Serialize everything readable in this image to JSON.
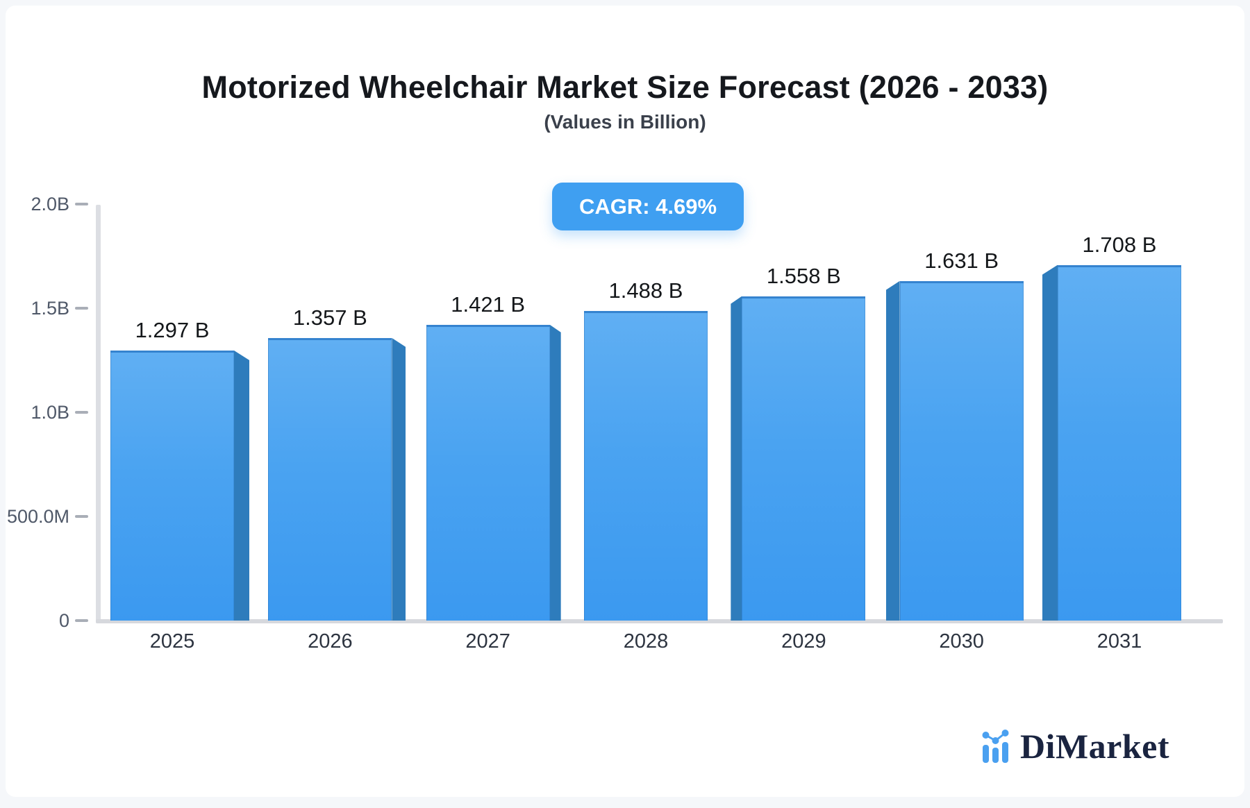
{
  "header": {
    "title": "Motorized Wheelchair Market Size Forecast (2026 - 2033)",
    "subtitle": "(Values in Billion)",
    "badge_label": "CAGR: 4.69%"
  },
  "chart_data": {
    "type": "bar",
    "title": "Motorized Wheelchair Market Size Forecast (2026 - 2033)",
    "subtitle": "(Values in Billion)",
    "cagr_percent": "4.69%",
    "categories": [
      "2025",
      "2026",
      "2027",
      "2028",
      "2029",
      "2030",
      "2031"
    ],
    "values": [
      1.297,
      1.357,
      1.421,
      1.488,
      1.558,
      1.631,
      1.708
    ],
    "value_labels": [
      "1.297 B",
      "1.357 B",
      "1.421 B",
      "1.488 B",
      "1.558 B",
      "1.631 B",
      "1.708 B"
    ],
    "value_unit": "Billion",
    "ylim": [
      0,
      2.0
    ],
    "ytick_values": [
      0,
      0.5,
      1.0,
      1.5,
      2.0
    ],
    "ytick_labels": [
      "0",
      "500.0M",
      "1.0B",
      "1.5B",
      "2.0B"
    ],
    "grid": false,
    "legend": "none",
    "colors": {
      "bar_top": "#60aff3",
      "bar_bottom": "#3b99f0",
      "bar_side": "#2e7cbc",
      "badge_background": "#3f9ff1",
      "axis_line": "#d6d8dd"
    }
  },
  "logo": {
    "text": "DiMarket",
    "icon": "bar-chart-logo-icon",
    "text_color": "#1a2440",
    "accent_color": "#4aa0f0"
  }
}
